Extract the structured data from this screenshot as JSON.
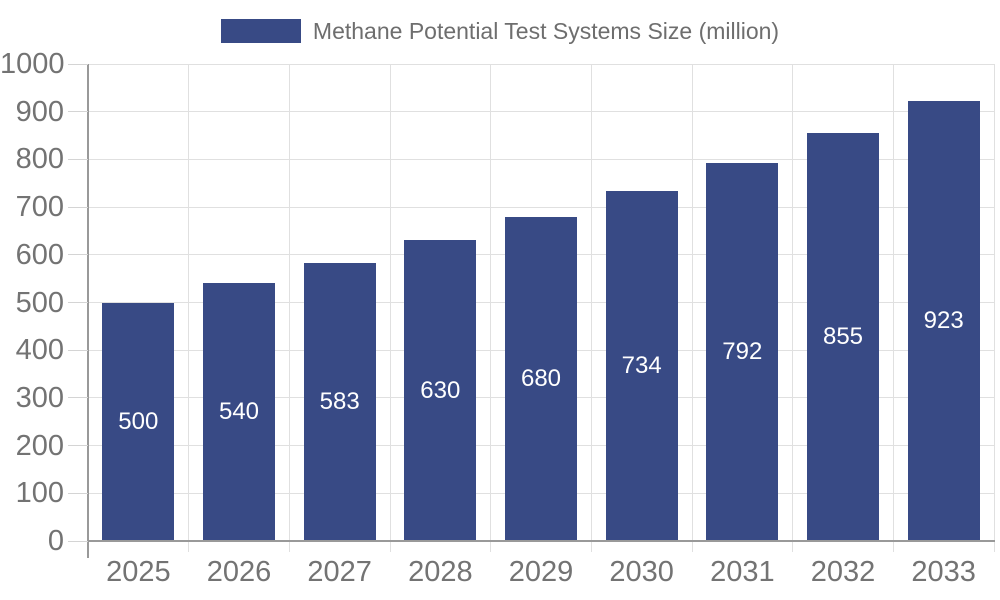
{
  "legend": {
    "label": "Methane Potential Test Systems Size (million)"
  },
  "chart_data": {
    "type": "bar",
    "title": "Methane Potential Test Systems Size (million)",
    "categories": [
      "2025",
      "2026",
      "2027",
      "2028",
      "2029",
      "2030",
      "2031",
      "2032",
      "2033"
    ],
    "values": [
      500,
      540,
      583,
      630,
      680,
      734,
      792,
      855,
      923
    ],
    "series": [
      {
        "name": "Methane Potential Test Systems Size (million)",
        "values": [
          500,
          540,
          583,
          630,
          680,
          734,
          792,
          855,
          923
        ]
      }
    ],
    "xlabel": "",
    "ylabel": "",
    "ylim": [
      0,
      1000
    ],
    "y_ticks": [
      0,
      100,
      200,
      300,
      400,
      500,
      600,
      700,
      800,
      900,
      1000
    ],
    "grid": true,
    "legend_position": "top",
    "bar_labels_visible": true
  },
  "colors": {
    "bar": "#384A85",
    "bar_label": "#FFFFFF",
    "grid": "#E0E0E0",
    "axis": "#999999",
    "tick": "#D4D4D4",
    "axis_text": "#737373",
    "legend_text": "#6E6E6E",
    "background": "#FFFFFF"
  }
}
